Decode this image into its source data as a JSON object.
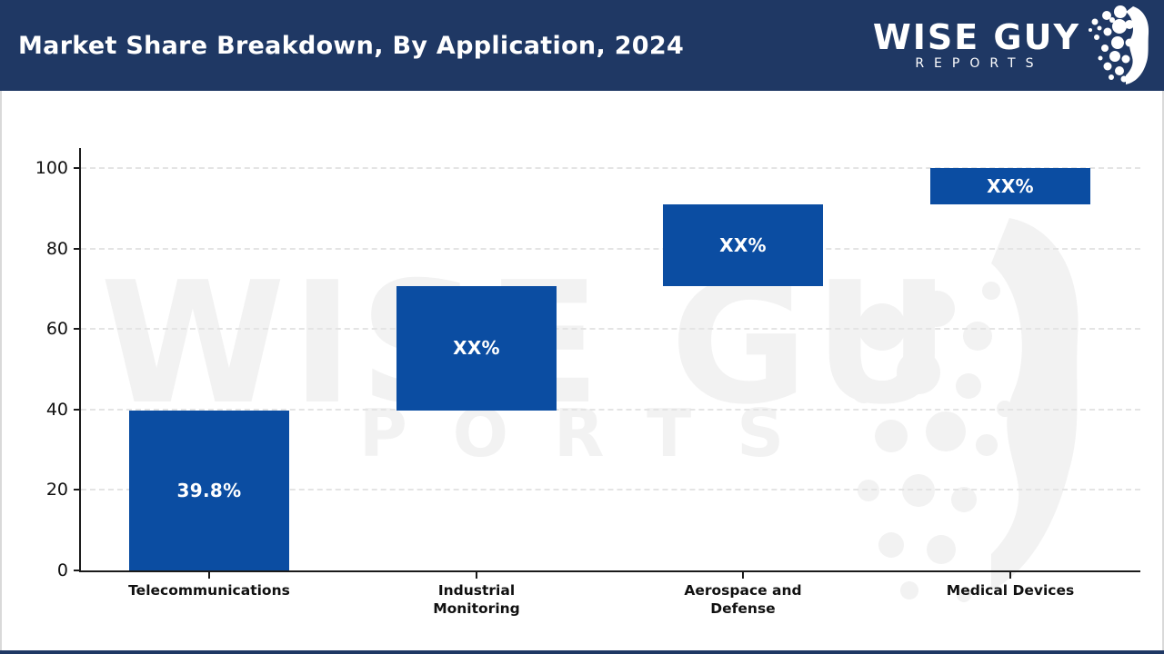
{
  "header": {
    "title": "Market Share Breakdown, By Application, 2024",
    "logo": {
      "line1": "WISE GUY",
      "line2": "REPORTS"
    }
  },
  "watermark": {
    "line1": "WISE GU",
    "line2": "PORTS"
  },
  "colors": {
    "header_bg": "#1f3864",
    "bar": "#0b4da2",
    "bar_label": "#ffffff",
    "axis": "#1a1a1a",
    "gridline": "#e4e4e4",
    "watermark": "#f2f2f2",
    "bottom_strip": "#1f3864"
  },
  "chart_data": {
    "type": "bar",
    "subtype": "waterfall",
    "title": "Market Share Breakdown, By Application, 2024",
    "categories": [
      {
        "lines": [
          "Telecommunications"
        ]
      },
      {
        "lines": [
          "Industrial",
          "Monitoring"
        ]
      },
      {
        "lines": [
          "Aerospace and",
          "Defense"
        ]
      },
      {
        "lines": [
          "Medical Devices"
        ]
      }
    ],
    "segments": [
      {
        "start": 0,
        "end": 39.8,
        "label": "39.8%"
      },
      {
        "start": 39.8,
        "end": 70.7,
        "label": "XX%"
      },
      {
        "start": 70.7,
        "end": 91.0,
        "label": "XX%"
      },
      {
        "start": 91.0,
        "end": 100,
        "label": "XX%"
      }
    ],
    "xlabel": "",
    "ylabel": "",
    "ylim": [
      0,
      100
    ],
    "yticks": [
      0,
      20,
      40,
      60,
      80,
      100
    ],
    "grid": "horizontal-dashed",
    "legend": "none"
  }
}
